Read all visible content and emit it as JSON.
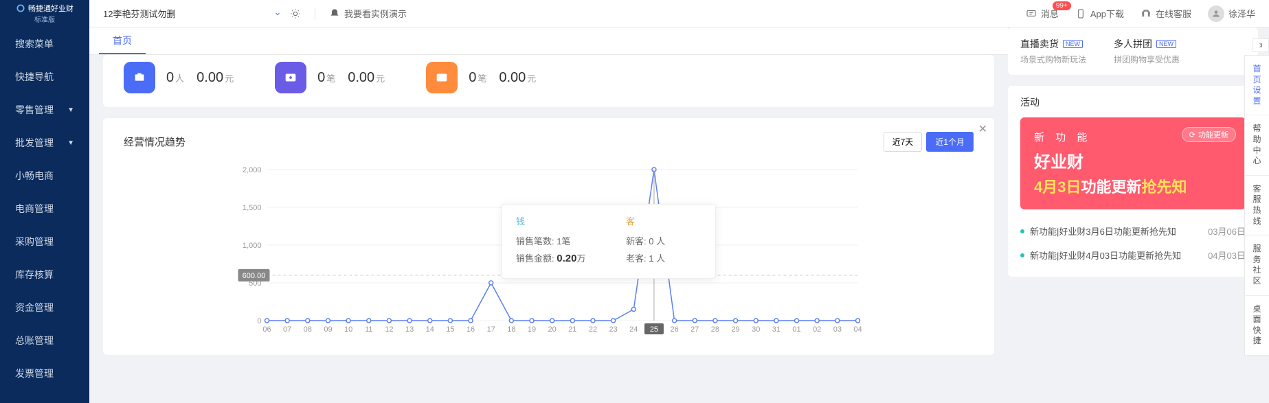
{
  "brand": {
    "name": "畅捷通好业财",
    "edition": "标准版"
  },
  "header": {
    "org_selector": "12李艳芬测试勿删",
    "demo_link": "我要看实例演示",
    "notif_label": "消息",
    "notif_badge": "99+",
    "app_download": "App下载",
    "support": "在线客服",
    "username": "徐泽华"
  },
  "sidebar": [
    {
      "label": "搜索菜单",
      "exp": false
    },
    {
      "label": "快捷导航",
      "exp": false
    },
    {
      "label": "零售管理",
      "exp": true
    },
    {
      "label": "批发管理",
      "exp": true
    },
    {
      "label": "小畅电商",
      "exp": false
    },
    {
      "label": "电商管理",
      "exp": false
    },
    {
      "label": "采购管理",
      "exp": false
    },
    {
      "label": "库存核算",
      "exp": false
    },
    {
      "label": "资金管理",
      "exp": false
    },
    {
      "label": "总账管理",
      "exp": false
    },
    {
      "label": "发票管理",
      "exp": false
    }
  ],
  "tabs": {
    "home": "首页"
  },
  "stats": [
    {
      "color": "blue",
      "v1": "0",
      "u1": "人",
      "v2": "0.00",
      "u2": "元"
    },
    {
      "color": "purple",
      "v1": "0",
      "u1": "笔",
      "v2": "0.00",
      "u2": "元"
    },
    {
      "color": "orange",
      "v1": "0",
      "u1": "笔",
      "v2": "0.00",
      "u2": "元"
    }
  ],
  "chart": {
    "title": "经营情况趋势",
    "range_7d": "近7天",
    "range_1m": "近1个月",
    "active_range": "1m",
    "y_labels": [
      "2,000",
      "1,500",
      "1,000",
      "500",
      "0"
    ],
    "y_max": 2000,
    "avg_line": {
      "value": 600,
      "label": "600.00"
    },
    "x_labels": [
      "06",
      "07",
      "08",
      "09",
      "10",
      "11",
      "12",
      "13",
      "14",
      "15",
      "16",
      "17",
      "18",
      "19",
      "20",
      "21",
      "22",
      "23",
      "24",
      "25",
      "26",
      "27",
      "28",
      "29",
      "30",
      "31",
      "01",
      "02",
      "03",
      "04"
    ],
    "values": [
      0,
      0,
      0,
      0,
      0,
      0,
      0,
      0,
      0,
      0,
      0,
      500,
      0,
      0,
      0,
      0,
      0,
      0,
      150,
      2000,
      0,
      0,
      0,
      0,
      0,
      0,
      0,
      0,
      0,
      0
    ],
    "hover_index": 19,
    "line_color": "#5b7ff5",
    "grid_color": "#f0f0f0",
    "avg_color": "#cccccc"
  },
  "tooltip": {
    "money_header": "钱",
    "cust_header": "客",
    "sales_count_l": "销售笔数:",
    "sales_count_v": "1笔",
    "sales_amt_l": "销售金额:",
    "sales_amt_v": "0.20",
    "sales_amt_u": "万",
    "new_cust_l": "新客:",
    "new_cust_v": "0 人",
    "old_cust_l": "老客:",
    "old_cust_v": "1 人"
  },
  "promos": [
    {
      "title": "直播卖货",
      "sub": "场景式购物新玩法",
      "new": true
    },
    {
      "title": "多人拼团",
      "sub": "拼团购物享受优惠",
      "new": true
    }
  ],
  "activity": {
    "title": "活动",
    "banner_tag": "新 功 能",
    "banner_refresh": "功能更新",
    "banner_t1": "好业财",
    "banner_t2_pre": "4月3日",
    "banner_t2_mid": "功能更新",
    "banner_t2_post": "抢先知",
    "news": [
      {
        "text": "新功能|好业财3月6日功能更新抢先知",
        "date": "03月06日"
      },
      {
        "text": "新功能|好业财4月03日功能更新抢先知",
        "date": "04月03日"
      }
    ]
  },
  "float_bar": [
    {
      "label": "首页设置",
      "active": true
    },
    {
      "label": "帮助中心",
      "active": false
    },
    {
      "label": "客服热线",
      "active": false
    },
    {
      "label": "服务社区",
      "active": false
    },
    {
      "label": "桌面快捷",
      "active": false
    }
  ]
}
